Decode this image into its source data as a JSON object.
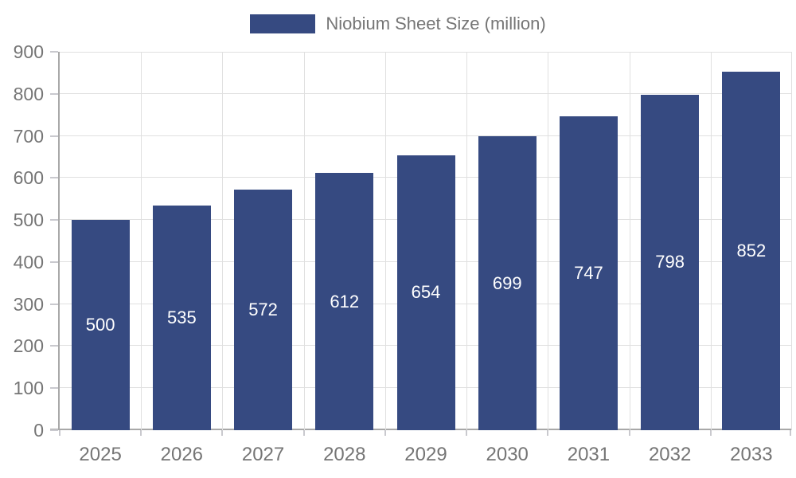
{
  "legend": {
    "label": "Niobium Sheet Size (million)"
  },
  "chart_data": {
    "type": "bar",
    "title": "Niobium Sheet Size (million)",
    "categories": [
      "2025",
      "2026",
      "2027",
      "2028",
      "2029",
      "2030",
      "2031",
      "2032",
      "2033"
    ],
    "values": [
      500,
      535,
      572,
      612,
      654,
      699,
      747,
      798,
      852
    ],
    "xlabel": "",
    "ylabel": "",
    "ylim": [
      0,
      900
    ],
    "ytick_step": 100,
    "grid": true,
    "legend_position": "top-center",
    "value_labels": "inside-center"
  },
  "colors": {
    "bar": "#364A81",
    "value_label": "#FFFFFF",
    "grid_line": "#E0E0E0",
    "axis_line": "#A8A8A8",
    "tick": "#C9C9CE",
    "label_text": "#757575",
    "background": "#FFFFFF"
  }
}
